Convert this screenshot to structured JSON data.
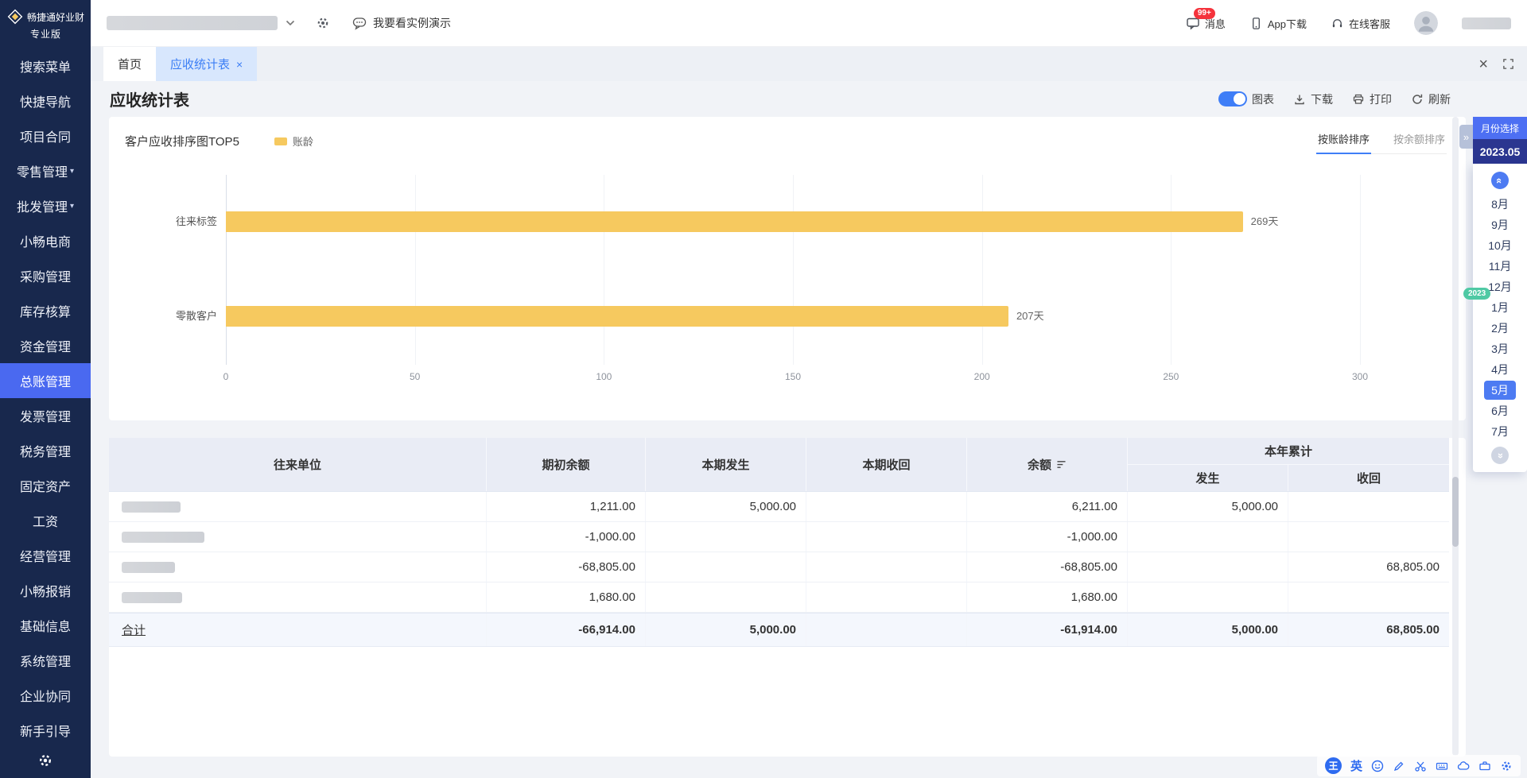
{
  "app": {
    "brand_line1": "畅捷通好业财",
    "brand_line2": "专业版"
  },
  "sidebar": {
    "items": [
      {
        "label": "搜索菜单"
      },
      {
        "label": "快捷导航"
      },
      {
        "label": "项目合同"
      },
      {
        "label": "零售管理",
        "caret": true
      },
      {
        "label": "批发管理",
        "caret": true
      },
      {
        "label": "小畅电商"
      },
      {
        "label": "采购管理"
      },
      {
        "label": "库存核算"
      },
      {
        "label": "资金管理"
      },
      {
        "label": "总账管理",
        "active": true
      },
      {
        "label": "发票管理"
      },
      {
        "label": "税务管理"
      },
      {
        "label": "固定资产"
      },
      {
        "label": "工资"
      },
      {
        "label": "经营管理"
      },
      {
        "label": "小畅报销"
      },
      {
        "label": "基础信息"
      },
      {
        "label": "系统管理"
      },
      {
        "label": "企业协同"
      },
      {
        "label": "新手引导"
      }
    ]
  },
  "topbar": {
    "demo_label": "我要看实例演示",
    "message_label": "消息",
    "message_badge": "99+",
    "app_download_label": "App下载",
    "support_label": "在线客服"
  },
  "tabbar": {
    "tabs": [
      {
        "label": "首页",
        "active": false,
        "closable": false
      },
      {
        "label": "应收统计表",
        "active": true,
        "closable": true
      }
    ]
  },
  "page": {
    "title": "应收统计表",
    "chart_toggle_label": "图表",
    "download_label": "下载",
    "print_label": "打印",
    "refresh_label": "刷新"
  },
  "chart_data": {
    "type": "bar",
    "orientation": "horizontal",
    "title": "客户应收排序图TOP5",
    "legend": [
      {
        "label": "账龄",
        "color": "#f6c95f"
      }
    ],
    "categories": [
      "往来标签",
      "零散客户"
    ],
    "values": [
      269,
      207
    ],
    "value_labels": [
      "269天",
      "207天"
    ],
    "unit": "天",
    "xlim": [
      0,
      300
    ],
    "xticks": [
      "0",
      "50",
      "100",
      "150",
      "200",
      "250",
      "300"
    ],
    "bar_color": "#f6c95f",
    "grid": true,
    "legend_position": "top",
    "sort_tabs": [
      {
        "label": "按账龄排序",
        "active": true
      },
      {
        "label": "按余额排序",
        "active": false
      }
    ]
  },
  "table": {
    "columns": [
      "往来单位",
      "期初余额",
      "本期发生",
      "本期收回",
      "余额"
    ],
    "group_header": "本年累计",
    "group_columns": [
      "发生",
      "收回"
    ],
    "rows": [
      {
        "name_redacted": true,
        "blur_width": 74,
        "values": [
          "1,211.00",
          "5,000.00",
          "",
          "6,211.00",
          "5,000.00",
          ""
        ]
      },
      {
        "name_redacted": true,
        "blur_width": 104,
        "values": [
          "-1,000.00",
          "",
          "",
          "-1,000.00",
          "",
          ""
        ]
      },
      {
        "name_redacted": true,
        "blur_width": 67,
        "values": [
          "-68,805.00",
          "",
          "",
          "-68,805.00",
          "",
          "68,805.00"
        ]
      },
      {
        "name_redacted": true,
        "blur_width": 76,
        "values": [
          "1,680.00",
          "",
          "",
          "1,680.00",
          "",
          ""
        ]
      }
    ],
    "total": {
      "label": "合计",
      "values": [
        "-66,914.00",
        "5,000.00",
        "",
        "-61,914.00",
        "5,000.00",
        "68,805.00"
      ]
    }
  },
  "month_panel": {
    "title": "月份选择",
    "current": "2023.05",
    "year_badge": "2023",
    "year_badge_after_index": 4,
    "months": [
      "8月",
      "9月",
      "10月",
      "11月",
      "12月",
      "1月",
      "2月",
      "3月",
      "4月",
      "5月",
      "6月",
      "7月"
    ],
    "selected": "5月"
  },
  "ime": {
    "logo": "王",
    "lang": "英",
    "icons": [
      "emoji",
      "pen",
      "scissors",
      "keyboard",
      "cloud",
      "toolbox",
      "gear"
    ]
  },
  "colors": {
    "accent_blue": "#3f7ef7",
    "sidebar_navy": "#18284d",
    "bar_yellow": "#f6c95f",
    "badge_red": "#f5333c",
    "year_green": "#4fc9a4"
  }
}
